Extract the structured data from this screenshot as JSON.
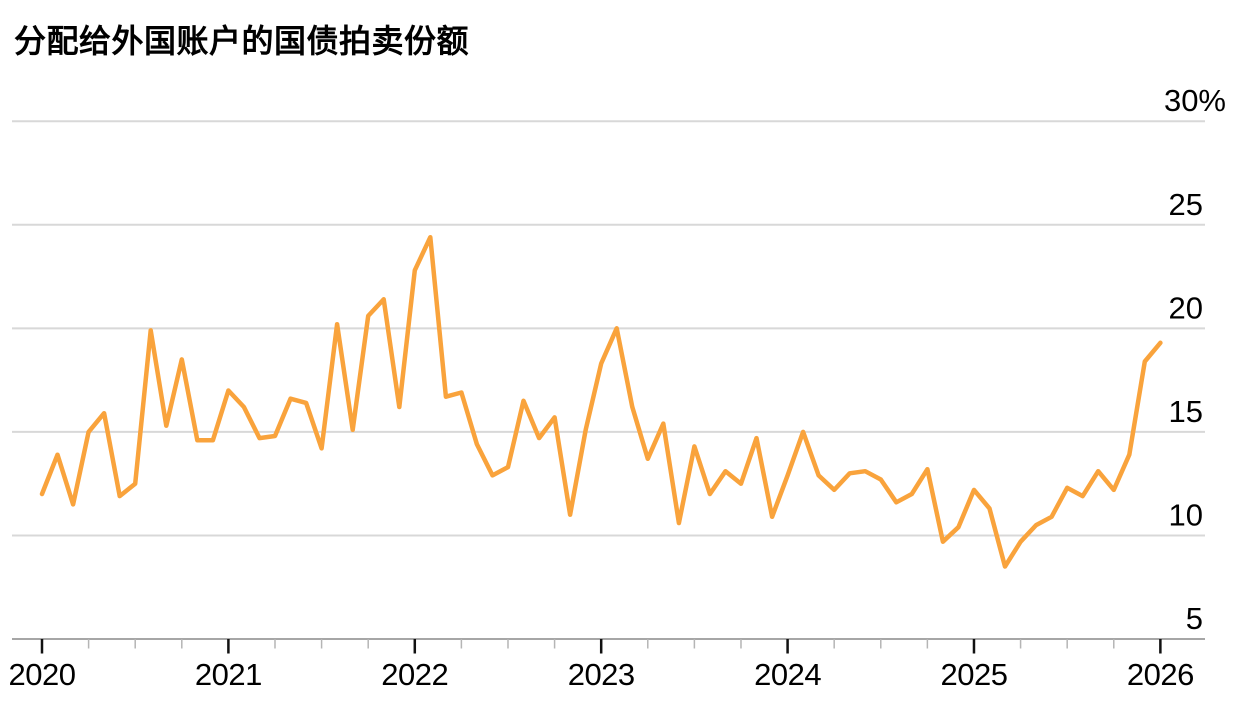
{
  "chart_data": {
    "type": "line",
    "title": "分配给外国账户的国债拍卖份额",
    "ylabel": "",
    "xlabel": "",
    "unit": "%",
    "ylim": [
      5,
      30
    ],
    "grid": "horizontal",
    "legend": "none",
    "frequency": "monthly",
    "x_months": [
      "2020-01",
      "2020-02",
      "2020-03",
      "2020-04",
      "2020-05",
      "2020-06",
      "2020-07",
      "2020-08",
      "2020-09",
      "2020-10",
      "2020-11",
      "2020-12",
      "2021-01",
      "2021-02",
      "2021-03",
      "2021-04",
      "2021-05",
      "2021-06",
      "2021-07",
      "2021-08",
      "2021-09",
      "2021-10",
      "2021-11",
      "2021-12",
      "2022-01",
      "2022-02",
      "2022-03",
      "2022-04",
      "2022-05",
      "2022-06",
      "2022-07",
      "2022-08",
      "2022-09",
      "2022-10",
      "2022-11",
      "2022-12",
      "2023-01",
      "2023-02",
      "2023-03",
      "2023-04",
      "2023-05",
      "2023-06",
      "2023-07",
      "2023-08",
      "2023-09",
      "2023-10",
      "2023-11",
      "2023-12",
      "2024-01",
      "2024-02",
      "2024-03",
      "2024-04",
      "2024-05",
      "2024-06",
      "2024-07",
      "2024-08",
      "2024-09",
      "2024-10",
      "2024-11",
      "2024-12",
      "2025-01",
      "2025-02",
      "2025-03",
      "2025-04",
      "2025-05",
      "2025-06",
      "2025-07",
      "2025-08",
      "2025-09",
      "2025-10",
      "2025-11",
      "2025-12",
      "2026-01"
    ],
    "values": [
      12.0,
      13.9,
      11.5,
      15.0,
      15.9,
      11.9,
      12.5,
      19.9,
      15.3,
      18.5,
      14.6,
      14.6,
      17.0,
      16.2,
      14.7,
      14.8,
      16.6,
      16.4,
      14.2,
      20.2,
      15.1,
      20.6,
      21.4,
      16.2,
      22.8,
      24.4,
      16.7,
      16.9,
      14.4,
      12.9,
      13.3,
      16.5,
      14.7,
      15.7,
      11.0,
      15.1,
      18.3,
      20.0,
      16.2,
      13.7,
      15.4,
      10.6,
      14.3,
      12.0,
      13.1,
      12.5,
      14.7,
      10.9,
      12.9,
      15.0,
      12.9,
      12.2,
      13.0,
      13.1,
      12.7,
      11.6,
      12.0,
      13.2,
      9.7,
      10.4,
      12.2,
      11.3,
      8.5,
      9.7,
      10.5,
      10.9,
      12.3,
      11.9,
      13.1,
      12.2,
      13.9,
      18.4,
      19.3
    ],
    "y_ticks": [
      {
        "value": 30,
        "label": "30%"
      },
      {
        "value": 25,
        "label": "25"
      },
      {
        "value": 20,
        "label": "20"
      },
      {
        "value": 15,
        "label": "15"
      },
      {
        "value": 10,
        "label": "10"
      },
      {
        "value": 5,
        "label": "5"
      }
    ],
    "x_ticks": [
      "2020",
      "2021",
      "2022",
      "2023",
      "2024",
      "2025",
      "2026"
    ],
    "minor_ticks_per_year": 3,
    "style": {
      "line_color": "#F9A33C",
      "gridline_color": "#D8D8D8",
      "axis_color": "#A6A6A6",
      "major_tick_color": "#111111",
      "minor_tick_color": "#B5B5B5",
      "text_color": "#000000",
      "background": "#FFFFFF"
    }
  }
}
